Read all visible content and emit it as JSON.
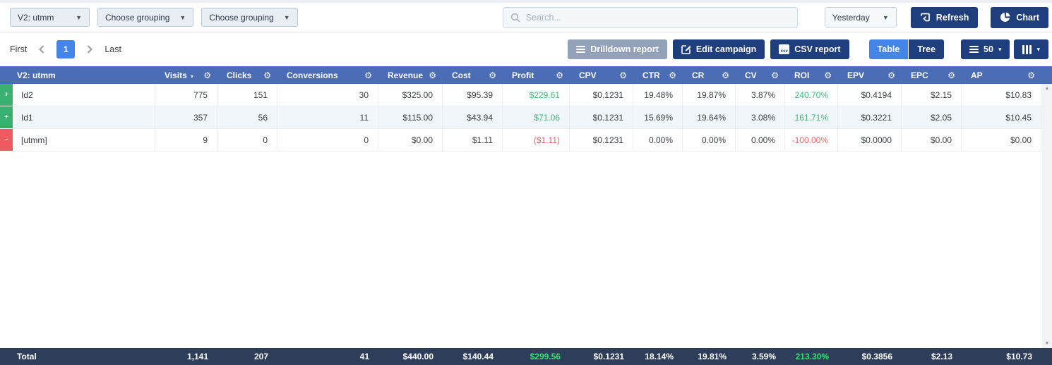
{
  "colors": {
    "header_blue": "#4a6db5",
    "navy_button": "#1e3e7d",
    "accent_blue": "#4486e8",
    "total_bar": "#2e3d59",
    "positive_green": "#3cb878",
    "negative_red": "#f2606a",
    "row_indicator_green": "#37b070",
    "row_indicator_red": "#ee5a60"
  },
  "toolbar": {
    "selects": [
      {
        "label": "V2: utmm"
      },
      {
        "label": "Choose grouping"
      },
      {
        "label": "Choose grouping"
      }
    ],
    "search": {
      "placeholder": "Search..."
    },
    "date_select": "Yesterday",
    "refresh_label": "Refresh",
    "chart_label": "Chart"
  },
  "actionbar": {
    "pagination": {
      "first": "First",
      "current_page": "1",
      "last": "Last"
    },
    "drilldown_label": "Drilldown report",
    "edit_campaign_label": "Edit campaign",
    "csv_label": "CSV report",
    "table_label": "Table",
    "tree_label": "Tree",
    "page_size": "50"
  },
  "table": {
    "columns": [
      {
        "label": "V2: utmm",
        "key": "name",
        "gear": false,
        "sort": false
      },
      {
        "label": "Visits",
        "key": "visits",
        "gear": true,
        "sort": true
      },
      {
        "label": "Clicks",
        "key": "clicks",
        "gear": true,
        "sort": false
      },
      {
        "label": "Conversions",
        "key": "conversions",
        "gear": true,
        "sort": false
      },
      {
        "label": "Revenue",
        "key": "revenue",
        "gear": true,
        "sort": false
      },
      {
        "label": "Cost",
        "key": "cost",
        "gear": true,
        "sort": false
      },
      {
        "label": "Profit",
        "key": "profit",
        "gear": true,
        "sort": false
      },
      {
        "label": "CPV",
        "key": "cpv",
        "gear": true,
        "sort": false
      },
      {
        "label": "CTR",
        "key": "ctr",
        "gear": true,
        "sort": false
      },
      {
        "label": "CR",
        "key": "cr",
        "gear": true,
        "sort": false
      },
      {
        "label": "CV",
        "key": "cv",
        "gear": true,
        "sort": false
      },
      {
        "label": "ROI",
        "key": "roi",
        "gear": true,
        "sort": false
      },
      {
        "label": "EPV",
        "key": "epv",
        "gear": true,
        "sort": false
      },
      {
        "label": "EPC",
        "key": "epc",
        "gear": true,
        "sort": false
      },
      {
        "label": "AP",
        "key": "ap",
        "gear": true,
        "sort": false
      }
    ],
    "rows": [
      {
        "status": "green",
        "name": "Id2",
        "visits": "775",
        "clicks": "151",
        "conversions": "30",
        "revenue": "$325.00",
        "cost": "$95.39",
        "profit": "$229.61",
        "cpv": "$0.1231",
        "ctr": "19.48%",
        "cr": "19.87%",
        "cv": "3.87%",
        "roi": "240.70%",
        "epv": "$0.4194",
        "epc": "$2.15",
        "ap": "$10.83"
      },
      {
        "status": "green",
        "name": "Id1",
        "visits": "357",
        "clicks": "56",
        "conversions": "11",
        "revenue": "$115.00",
        "cost": "$43.94",
        "profit": "$71.06",
        "cpv": "$0.1231",
        "ctr": "15.69%",
        "cr": "19.64%",
        "cv": "3.08%",
        "roi": "161.71%",
        "epv": "$0.3221",
        "epc": "$2.05",
        "ap": "$10.45"
      },
      {
        "status": "red",
        "name": "[utmm]",
        "visits": "9",
        "clicks": "0",
        "conversions": "0",
        "revenue": "$0.00",
        "cost": "$1.11",
        "profit": "($1.11)",
        "cpv": "$0.1231",
        "ctr": "0.00%",
        "cr": "0.00%",
        "cv": "0.00%",
        "roi": "-100.00%",
        "epv": "$0.0000",
        "epc": "$0.00",
        "ap": "$0.00"
      }
    ],
    "total": {
      "name": "Total",
      "visits": "1,141",
      "clicks": "207",
      "conversions": "41",
      "revenue": "$440.00",
      "cost": "$140.44",
      "profit": "$299.56",
      "cpv": "$0.1231",
      "ctr": "18.14%",
      "cr": "19.81%",
      "cv": "3.59%",
      "roi": "213.30%",
      "epv": "$0.3856",
      "epc": "$2.13",
      "ap": "$10.73"
    }
  }
}
